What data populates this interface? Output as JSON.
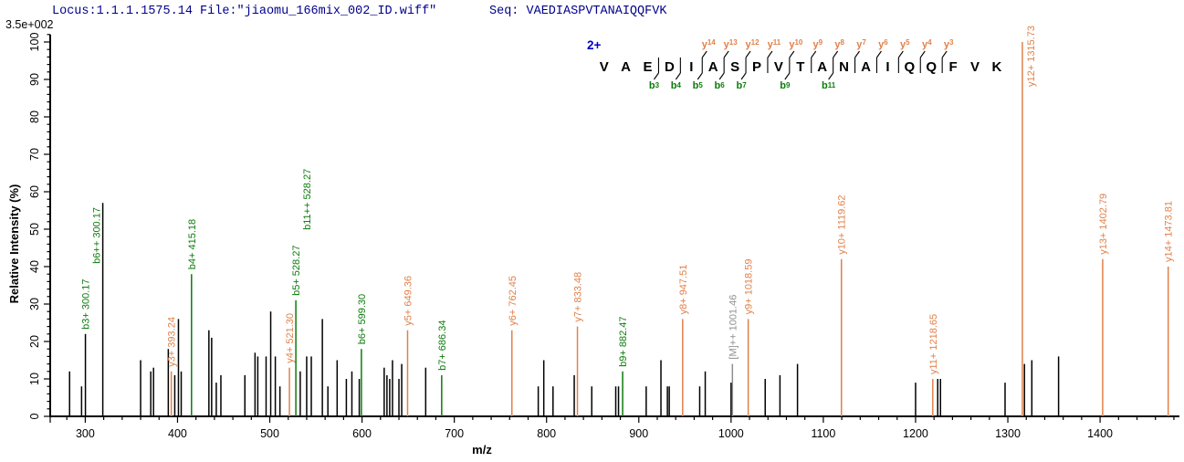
{
  "header": {
    "locus_file": "Locus:1.1.1.1575.14 File:\"jiaomu_166mix_002_ID.wiff\"",
    "seq": "Seq: VAEDIASPVTANAIQQFVK",
    "intensity_scale": "3.5e+002"
  },
  "colors": {
    "y_ion": "#e0814a",
    "b_ion": "#0c7c0c",
    "precursor": "#8f8f8f",
    "peak": "#000000",
    "axis": "#000000",
    "header_navy": "#00008b",
    "charge_blue": "#0000cd"
  },
  "sequence_display": {
    "charge_label": "2+",
    "residues": [
      "V",
      "A",
      "E",
      "D",
      "I",
      "A",
      "S",
      "P",
      "V",
      "T",
      "A",
      "N",
      "A",
      "I",
      "Q",
      "Q",
      "F",
      "V",
      "K"
    ],
    "y_ions": [
      {
        "name": "y",
        "num": 14,
        "gap_after": 5
      },
      {
        "name": "y",
        "num": 13,
        "gap_after": 6
      },
      {
        "name": "y",
        "num": 12,
        "gap_after": 7
      },
      {
        "name": "y",
        "num": 11,
        "gap_after": 8
      },
      {
        "name": "y",
        "num": 10,
        "gap_after": 9
      },
      {
        "name": "y",
        "num": 9,
        "gap_after": 10
      },
      {
        "name": "y",
        "num": 8,
        "gap_after": 11
      },
      {
        "name": "y",
        "num": 7,
        "gap_after": 12
      },
      {
        "name": "y",
        "num": 6,
        "gap_after": 13
      },
      {
        "name": "y",
        "num": 5,
        "gap_after": 14
      },
      {
        "name": "y",
        "num": 4,
        "gap_after": 15
      },
      {
        "name": "y",
        "num": 3,
        "gap_after": 16
      }
    ],
    "b_ions": [
      {
        "name": "b",
        "num": 3,
        "gap_after": 3
      },
      {
        "name": "b",
        "num": 4,
        "gap_after": 4
      },
      {
        "name": "b",
        "num": 5,
        "gap_after": 5
      },
      {
        "name": "b",
        "num": 6,
        "gap_after": 6
      },
      {
        "name": "b",
        "num": 7,
        "gap_after": 7
      },
      {
        "name": "b",
        "num": 9,
        "gap_after": 9
      },
      {
        "name": "b",
        "num": 11,
        "gap_after": 11
      }
    ]
  },
  "chart_data": {
    "type": "bar",
    "title": "",
    "xlabel": "m/z",
    "ylabel": "Relative Intensity (%)",
    "xlim": [
      262,
      1486
    ],
    "ylim": [
      0,
      100
    ],
    "x_major_ticks": [
      300,
      400,
      500,
      600,
      700,
      800,
      900,
      1000,
      1100,
      1200,
      1300,
      1400
    ],
    "x_minor_step": 20,
    "y_major_ticks": [
      0,
      10,
      20,
      30,
      40,
      50,
      60,
      70,
      80,
      90,
      100
    ],
    "y_minor_step": 2,
    "grid": false,
    "peptide": "VAEDIASPVTANAIQQFVK",
    "labeled_peaks": [
      {
        "mz": 300.17,
        "intensity": 22,
        "ion": "b",
        "line_color": "black",
        "label_lines": [
          "b3+ 300.17",
          "b6++ 300.17"
        ]
      },
      {
        "mz": 393.24,
        "intensity": 12,
        "ion": "y",
        "label_lines": [
          "y3+ 393.24"
        ]
      },
      {
        "mz": 415.18,
        "intensity": 38,
        "ion": "b",
        "label_lines": [
          "b4+ 415.18"
        ]
      },
      {
        "mz": 521.3,
        "intensity": 13,
        "ion": "y",
        "label_lines": [
          "y4+ 521.30"
        ]
      },
      {
        "mz": 528.27,
        "intensity": 31,
        "ion": "b",
        "label_lines": [
          "b5+ 528.27",
          "b11++ 528.27"
        ]
      },
      {
        "mz": 599.3,
        "intensity": 18,
        "ion": "b",
        "label_lines": [
          "b6+ 599.30"
        ]
      },
      {
        "mz": 649.36,
        "intensity": 23,
        "ion": "y",
        "label_lines": [
          "y5+ 649.36"
        ]
      },
      {
        "mz": 686.34,
        "intensity": 11,
        "ion": "b",
        "label_lines": [
          "b7+ 686.34"
        ]
      },
      {
        "mz": 762.45,
        "intensity": 23,
        "ion": "y",
        "label_lines": [
          "y6+ 762.45"
        ]
      },
      {
        "mz": 833.48,
        "intensity": 24,
        "ion": "y",
        "label_lines": [
          "y7+ 833.48"
        ]
      },
      {
        "mz": 882.47,
        "intensity": 12,
        "ion": "b",
        "label_lines": [
          "b9+ 882.47"
        ]
      },
      {
        "mz": 947.51,
        "intensity": 26,
        "ion": "y",
        "label_lines": [
          "y8+ 947.51"
        ]
      },
      {
        "mz": 1001.46,
        "intensity": 14,
        "ion": "precursor",
        "label_lines": [
          "[M]++ 1001.46"
        ]
      },
      {
        "mz": 1018.59,
        "intensity": 26,
        "ion": "y",
        "label_lines": [
          "y9+ 1018.59"
        ]
      },
      {
        "mz": 1119.62,
        "intensity": 42,
        "ion": "y",
        "label_lines": [
          "y10+ 1119.62"
        ]
      },
      {
        "mz": 1218.65,
        "intensity": 10,
        "ion": "y",
        "label_lines": [
          "y11+ 1218.65"
        ]
      },
      {
        "mz": 1315.73,
        "intensity": 100,
        "ion": "y",
        "label_lines": [
          "y12+ 1315.73"
        ]
      },
      {
        "mz": 1402.79,
        "intensity": 42,
        "ion": "y",
        "label_lines": [
          "y13+ 1402.79"
        ]
      },
      {
        "mz": 1473.81,
        "intensity": 40,
        "ion": "y",
        "label_lines": [
          "y14+ 1473.81"
        ]
      }
    ],
    "unlabeled_peaks": [
      [
        283,
        12
      ],
      [
        296,
        8
      ],
      [
        319,
        57
      ],
      [
        360,
        15
      ],
      [
        371,
        12
      ],
      [
        374,
        13
      ],
      [
        390,
        18
      ],
      [
        397,
        11
      ],
      [
        401,
        26
      ],
      [
        404,
        12
      ],
      [
        434,
        23
      ],
      [
        437,
        21
      ],
      [
        442,
        9
      ],
      [
        447,
        11
      ],
      [
        473,
        11
      ],
      [
        484,
        17
      ],
      [
        487,
        16
      ],
      [
        496,
        16
      ],
      [
        501,
        28
      ],
      [
        506,
        16
      ],
      [
        511,
        8
      ],
      [
        533,
        12
      ],
      [
        540,
        16
      ],
      [
        545,
        16
      ],
      [
        557,
        26
      ],
      [
        563,
        8
      ],
      [
        573,
        15
      ],
      [
        583,
        10
      ],
      [
        589,
        12
      ],
      [
        597,
        10
      ],
      [
        624,
        13
      ],
      [
        627,
        11
      ],
      [
        630,
        10
      ],
      [
        633,
        15
      ],
      [
        640,
        10
      ],
      [
        643,
        14
      ],
      [
        669,
        13
      ],
      [
        791,
        8
      ],
      [
        797,
        15
      ],
      [
        807,
        8
      ],
      [
        830,
        11
      ],
      [
        849,
        8
      ],
      [
        875,
        8
      ],
      [
        878,
        8
      ],
      [
        908,
        8
      ],
      [
        924,
        15
      ],
      [
        931,
        8
      ],
      [
        933,
        8
      ],
      [
        966,
        8
      ],
      [
        972,
        12
      ],
      [
        1000,
        9
      ],
      [
        1037,
        10
      ],
      [
        1053,
        11
      ],
      [
        1072,
        14
      ],
      [
        1200,
        9
      ],
      [
        1224,
        10
      ],
      [
        1227,
        10
      ],
      [
        1297,
        9
      ],
      [
        1318,
        14
      ],
      [
        1326,
        15
      ],
      [
        1355,
        16
      ]
    ]
  }
}
